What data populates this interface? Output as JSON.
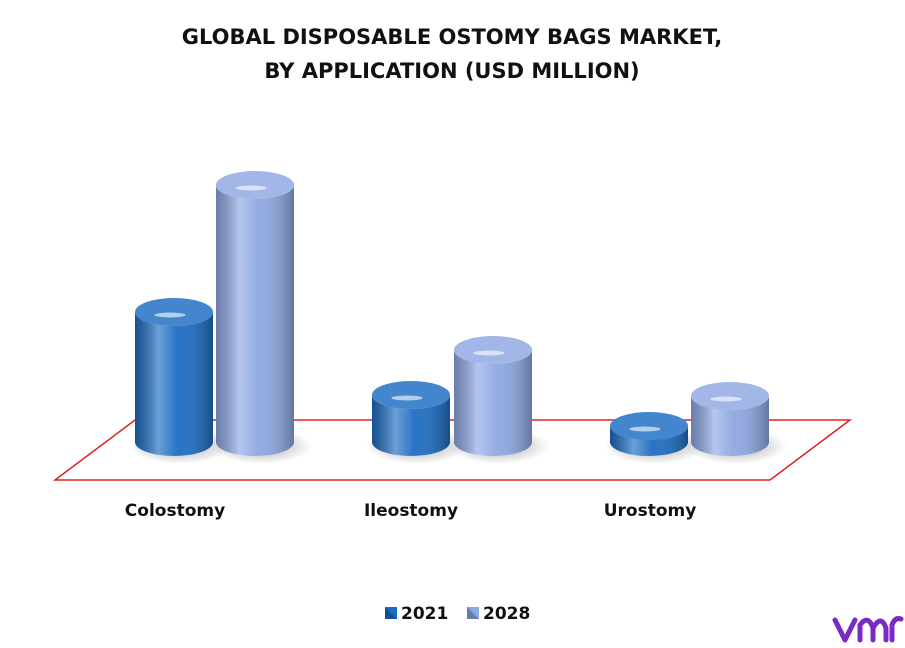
{
  "chart_data": {
    "type": "bar3d",
    "title": [
      "GLOBAL DISPOSABLE OSTOMY BAGS MARKET,",
      "BY APPLICATION (USD MILLION)"
    ],
    "categories": [
      "Colostomy",
      "Ileostomy",
      "Urostomy"
    ],
    "series": [
      {
        "name": "2021",
        "color": "#1c6cc2",
        "values": [
          130,
          47,
          16
        ]
      },
      {
        "name": "2028",
        "color": "#8ea7e2",
        "values": [
          257,
          92,
          46
        ]
      }
    ],
    "floor_color": "#e02020"
  }
}
